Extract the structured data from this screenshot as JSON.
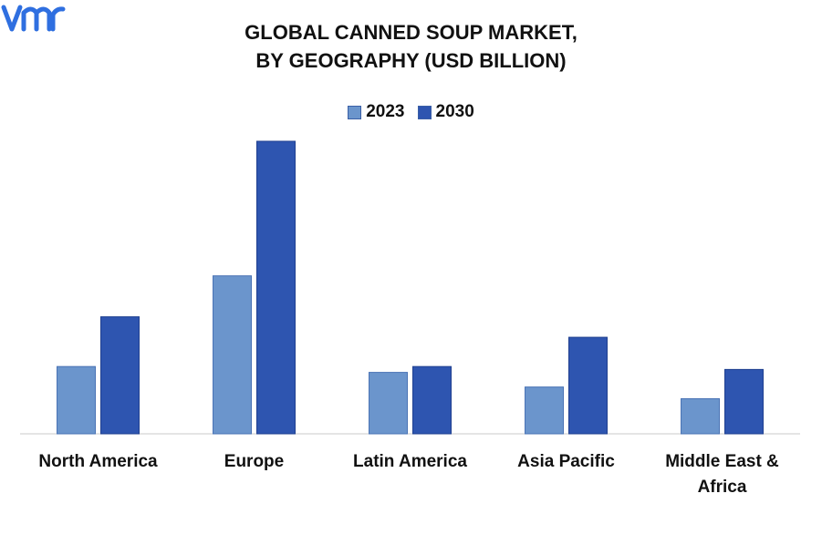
{
  "chart_data": {
    "type": "bar",
    "title_lines": [
      "GLOBAL CANNED SOUP MARKET,",
      "BY GEOGRAPHY (USD BILLION)"
    ],
    "categories": [
      "North America",
      "Europe",
      "Latin America",
      "Asia Pacific",
      "Middle East & Africa"
    ],
    "series": [
      {
        "name": "2023",
        "values": [
          2.3,
          5.4,
          2.1,
          1.6,
          1.2
        ],
        "color": "#6b95cc"
      },
      {
        "name": "2030",
        "values": [
          4.0,
          10.0,
          2.3,
          3.3,
          2.2
        ],
        "color": "#2e55b0"
      }
    ],
    "ylim": [
      0,
      10.4
    ],
    "grid": false,
    "legend_position": "top-center",
    "xlabel": "",
    "ylabel": ""
  },
  "brand": {
    "logo_text": "vmr",
    "logo_color": "#2f6fe0"
  }
}
